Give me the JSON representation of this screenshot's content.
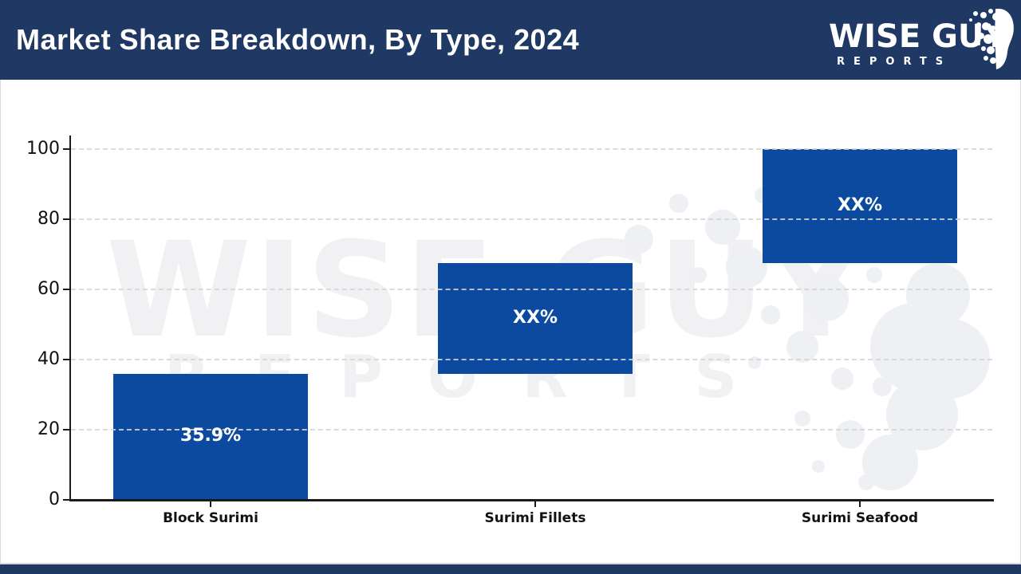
{
  "header": {
    "title": "Market Share Breakdown, By Type, 2024",
    "logo_line1": "WISE GUY",
    "logo_line2": "REPORTS"
  },
  "watermark": {
    "line1": "WISE GUY",
    "line2": "REPORTS"
  },
  "chart_data": {
    "type": "bar",
    "variant": "stacked-waterfall",
    "title": "Market Share Breakdown, By Type, 2024",
    "categories": [
      "Block Surimi",
      "Surimi Fillets",
      "Surimi Seafood"
    ],
    "segments": [
      {
        "category": "Block Surimi",
        "start": 0,
        "end": 35.9,
        "label": "35.9%"
      },
      {
        "category": "Surimi Fillets",
        "start": 35.9,
        "end": 67.5,
        "label": "XX%"
      },
      {
        "category": "Surimi Seafood",
        "start": 67.5,
        "end": 100,
        "label": "XX%"
      }
    ],
    "values_pct_estimated": [
      35.9,
      31.6,
      32.5
    ],
    "xlabel": "",
    "ylabel": "",
    "ylim": [
      0,
      100
    ],
    "yticks": [
      0,
      20,
      40,
      60,
      80,
      100
    ],
    "grid": "horizontal-dashed",
    "legend": "none"
  },
  "colors": {
    "header_bg": "#1f3864",
    "footer_bg": "#1f3864",
    "bar": "#0b4a9f",
    "axis": "#1a1a1a",
    "grid": "#d5d5d5",
    "bar_label_text": "#ffffff",
    "title_text": "#ffffff",
    "watermark": "#f1f1f3"
  }
}
